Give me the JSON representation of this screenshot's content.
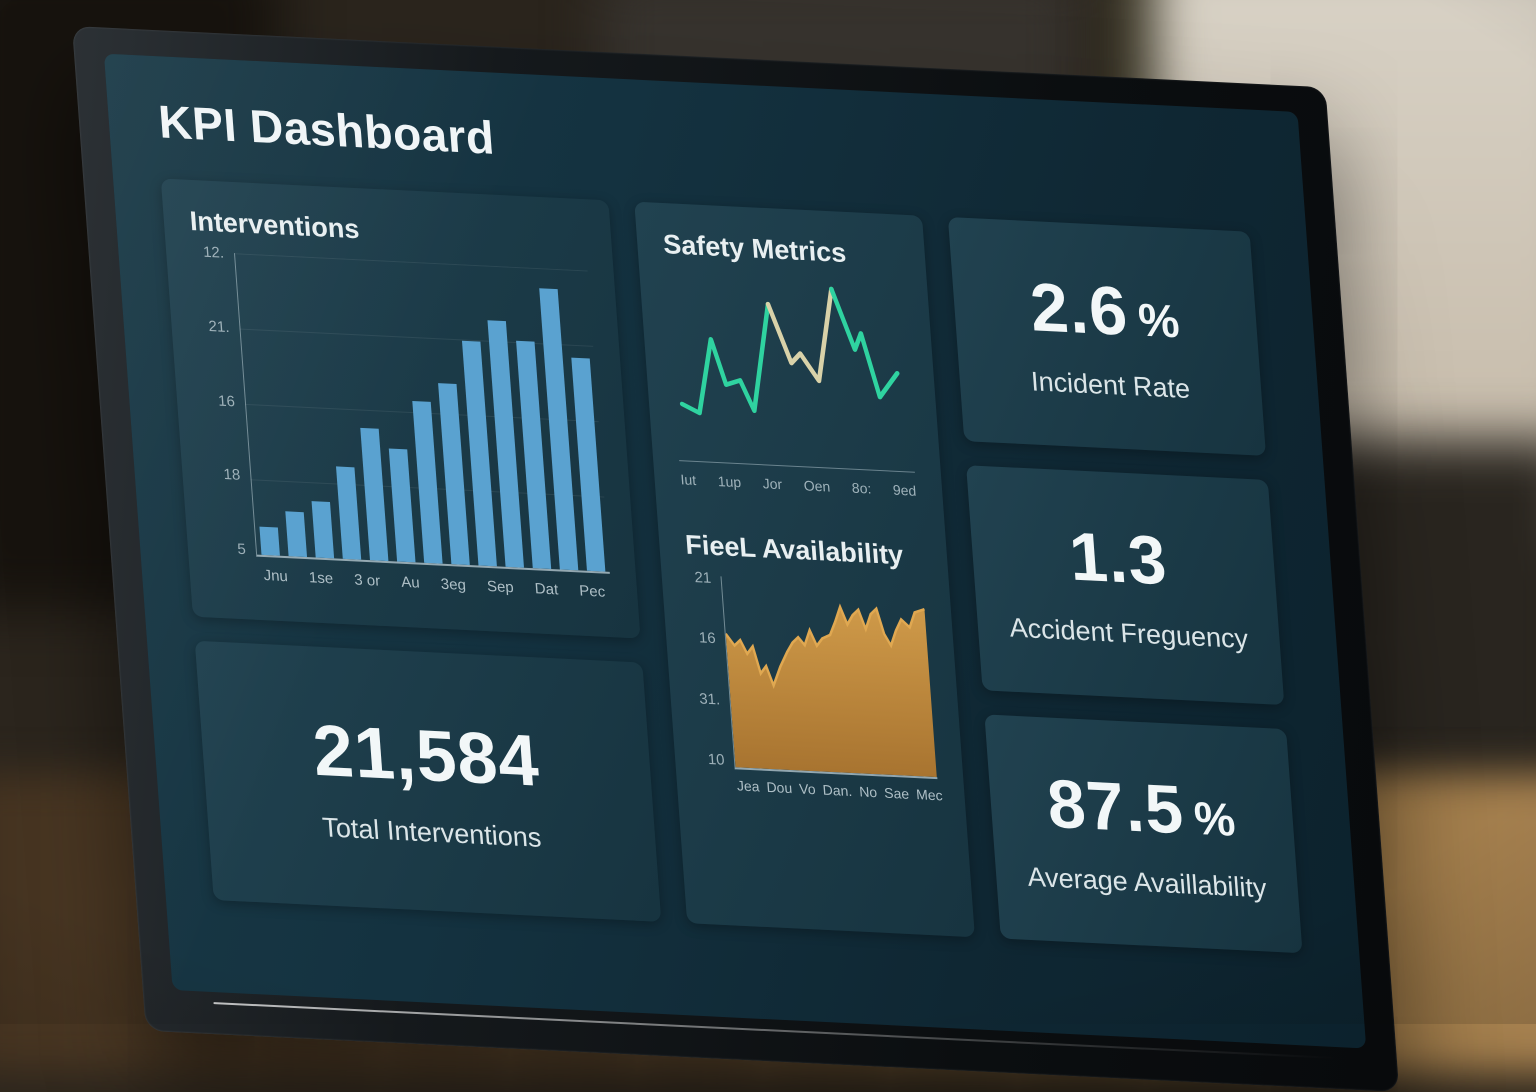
{
  "title": "KPI Dashboard",
  "interventions": {
    "title": "Interventions",
    "yticks": [
      "12.",
      "21.",
      "16",
      "18",
      "5"
    ],
    "xticks": [
      "Jnu",
      "1se",
      "3 or",
      "Au",
      "3eg",
      "Sep",
      "Dat",
      "Pec"
    ]
  },
  "total": {
    "value": "21,584",
    "label": "Total Interventions"
  },
  "safety": {
    "title": "Safety Metrics",
    "xticks": [
      "Iut",
      "1up",
      "Jor",
      "Oen",
      "8o:",
      "9ed"
    ]
  },
  "fleet": {
    "title": "FieeL Availability",
    "yticks": [
      "21",
      "16",
      "31.",
      "10"
    ],
    "xticks": [
      "Jea",
      "Dou",
      "Vo",
      "Dan.",
      "No",
      "Sae",
      "Mec"
    ]
  },
  "stats": [
    {
      "value": "2.6",
      "unit": "%",
      "label": "Incident Rate"
    },
    {
      "value": "1.3",
      "unit": "",
      "label": "Accident Freguency"
    },
    {
      "value": "87.5",
      "unit": "%",
      "label": "Average Availlability"
    }
  ],
  "colors": {
    "bar": "#5aa2d0",
    "line_teal": "#2fd3a0",
    "line_beige": "#d9d2a9",
    "area_top": "#cf9a49",
    "area_bottom": "#a87430",
    "area_stroke": "#e0a851"
  },
  "chart_data": [
    {
      "type": "bar",
      "name": "interventions",
      "title": "Interventions",
      "categories": [
        "Jnu",
        "1se",
        "3 or",
        "Au",
        "3eg",
        "Sep",
        "Dat",
        "Pec"
      ],
      "values": [
        2.2,
        3.5,
        4.4,
        7.2,
        10.3,
        8.8,
        12.6,
        14.1,
        17.5,
        19.2,
        17.7,
        21.9,
        16.6
      ],
      "ymax": 23,
      "ylabels": [
        "12.",
        "21.",
        "16",
        "18",
        "5"
      ],
      "color": "#5aa2d0",
      "grid": true,
      "legend": false
    },
    {
      "type": "line",
      "name": "safety",
      "title": "Safety Metrics",
      "xticks": [
        "Iut",
        "1up",
        "Jor",
        "Oen",
        "8o:",
        "9ed"
      ],
      "points": [
        [
          3,
          78
        ],
        [
          10,
          83
        ],
        [
          17,
          38
        ],
        [
          22,
          65
        ],
        [
          28,
          62
        ],
        [
          33,
          80
        ],
        [
          42,
          15
        ],
        [
          50,
          50
        ],
        [
          54,
          44
        ],
        [
          61,
          60
        ],
        [
          69,
          4
        ],
        [
          77,
          40
        ],
        [
          80,
          30
        ],
        [
          86,
          68
        ],
        [
          94,
          53
        ]
      ],
      "segments": [
        {
          "color": "#2fd3a0",
          "from": 0,
          "to": 6
        },
        {
          "color": "#d9d2a9",
          "from": 6,
          "to": 10
        },
        {
          "color": "#2fd3a0",
          "from": 10,
          "to": 14
        }
      ],
      "grid": false,
      "legend": false
    },
    {
      "type": "area",
      "name": "fleet",
      "title": "FieeL Availability",
      "ylabels": [
        "21",
        "16",
        "31.",
        "10"
      ],
      "xticks": [
        "Jea",
        "Dou",
        "Vo",
        "Dan.",
        "No",
        "Sae",
        "Mec"
      ],
      "points": [
        [
          0,
          30
        ],
        [
          4,
          36
        ],
        [
          7,
          33
        ],
        [
          10,
          40
        ],
        [
          13,
          36
        ],
        [
          16,
          50
        ],
        [
          19,
          46
        ],
        [
          22,
          56
        ],
        [
          26,
          46
        ],
        [
          30,
          38
        ],
        [
          33,
          33
        ],
        [
          36,
          30
        ],
        [
          39,
          34
        ],
        [
          42,
          26
        ],
        [
          45,
          34
        ],
        [
          48,
          30
        ],
        [
          52,
          28
        ],
        [
          55,
          21
        ],
        [
          58,
          13
        ],
        [
          61,
          22
        ],
        [
          64,
          17
        ],
        [
          67,
          14
        ],
        [
          70,
          24
        ],
        [
          73,
          16
        ],
        [
          76,
          13
        ],
        [
          79,
          26
        ],
        [
          82,
          32
        ],
        [
          85,
          24
        ],
        [
          88,
          18
        ],
        [
          92,
          22
        ],
        [
          95,
          14
        ],
        [
          100,
          12
        ]
      ],
      "fill_top": "#cf9a49",
      "fill_bottom": "#a87430",
      "stroke": "#e0a851",
      "grid": false,
      "legend": false
    }
  ]
}
